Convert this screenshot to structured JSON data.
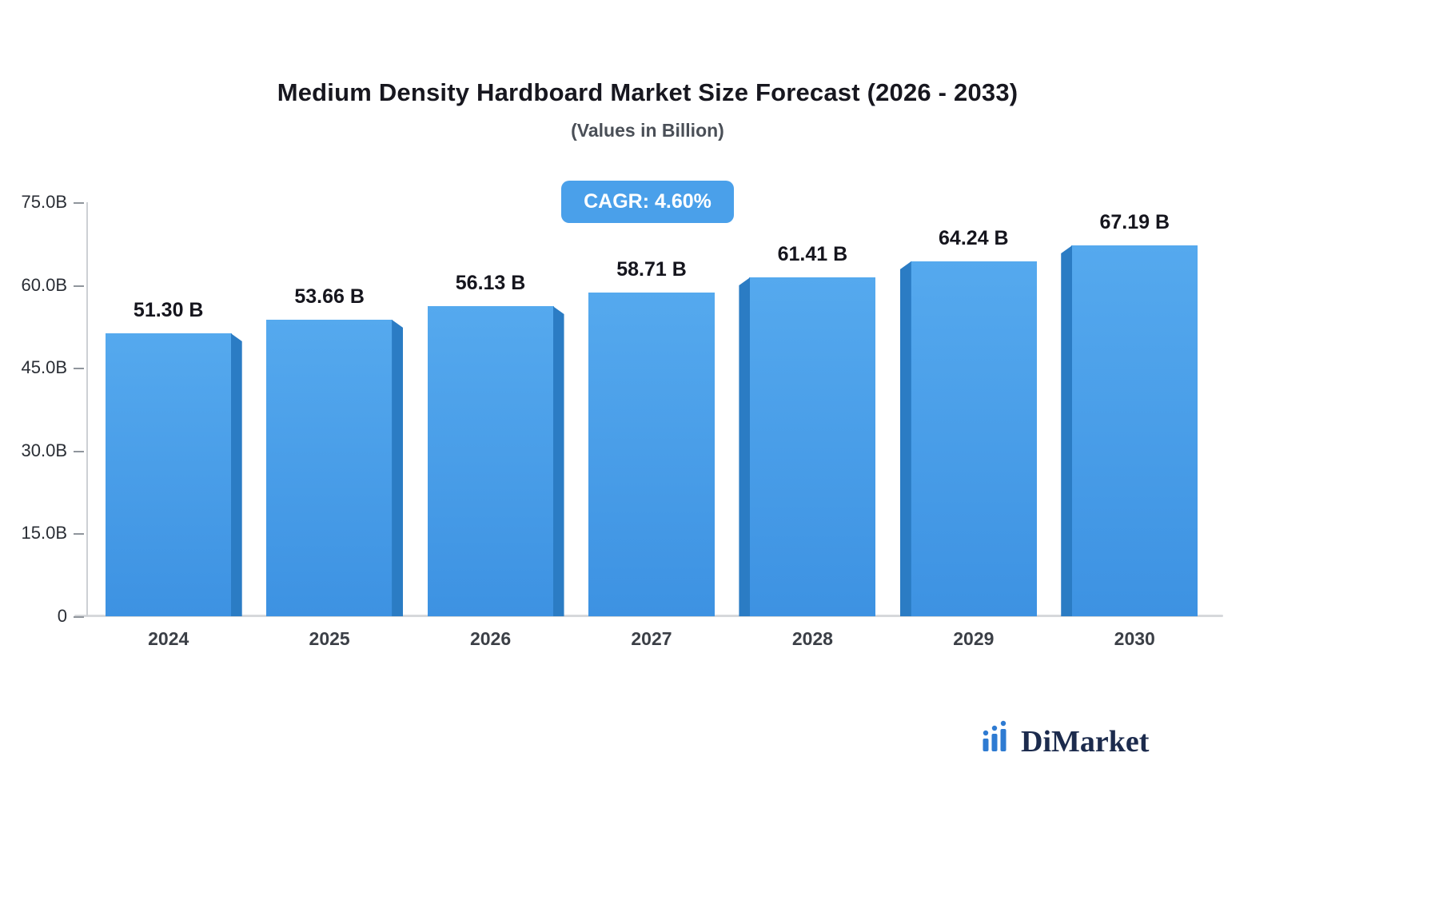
{
  "chart_data": {
    "type": "bar",
    "title": "Medium Density Hardboard Market Size Forecast (2026 - 2033)",
    "subtitle": "(Values in Billion)",
    "cagr_label": "CAGR: 4.60%",
    "categories": [
      "2024",
      "2025",
      "2026",
      "2027",
      "2028",
      "2029",
      "2030"
    ],
    "values": [
      51.3,
      53.66,
      56.13,
      58.71,
      61.41,
      64.24,
      67.19
    ],
    "value_labels": [
      "51.30 B",
      "53.66 B",
      "56.13 B",
      "58.71 B",
      "61.41 B",
      "64.24 B",
      "67.19 B"
    ],
    "xlabel": "",
    "ylabel": "",
    "ylim": [
      0,
      75
    ],
    "yticks": [
      {
        "label": "75.0B",
        "value": 75
      },
      {
        "label": "60.0B",
        "value": 60
      },
      {
        "label": "45.0B",
        "value": 45
      },
      {
        "label": "30.0B",
        "value": 30
      },
      {
        "label": "15.0B",
        "value": 15
      },
      {
        "label": "0",
        "value": 0
      }
    ],
    "grid": "off",
    "legend": "none",
    "shadow_sides": [
      "right",
      "right",
      "right",
      "none",
      "left",
      "left",
      "left"
    ],
    "colors": {
      "bar_top": "#55a9ee",
      "bar_bottom": "#3d92e2",
      "bar_side": "#2b7cc4",
      "accent": "#4aa0ea",
      "axis": "#cdd0d4"
    }
  },
  "logo": {
    "text": "DiMarket",
    "icon": "bar-chart-dots-icon"
  }
}
